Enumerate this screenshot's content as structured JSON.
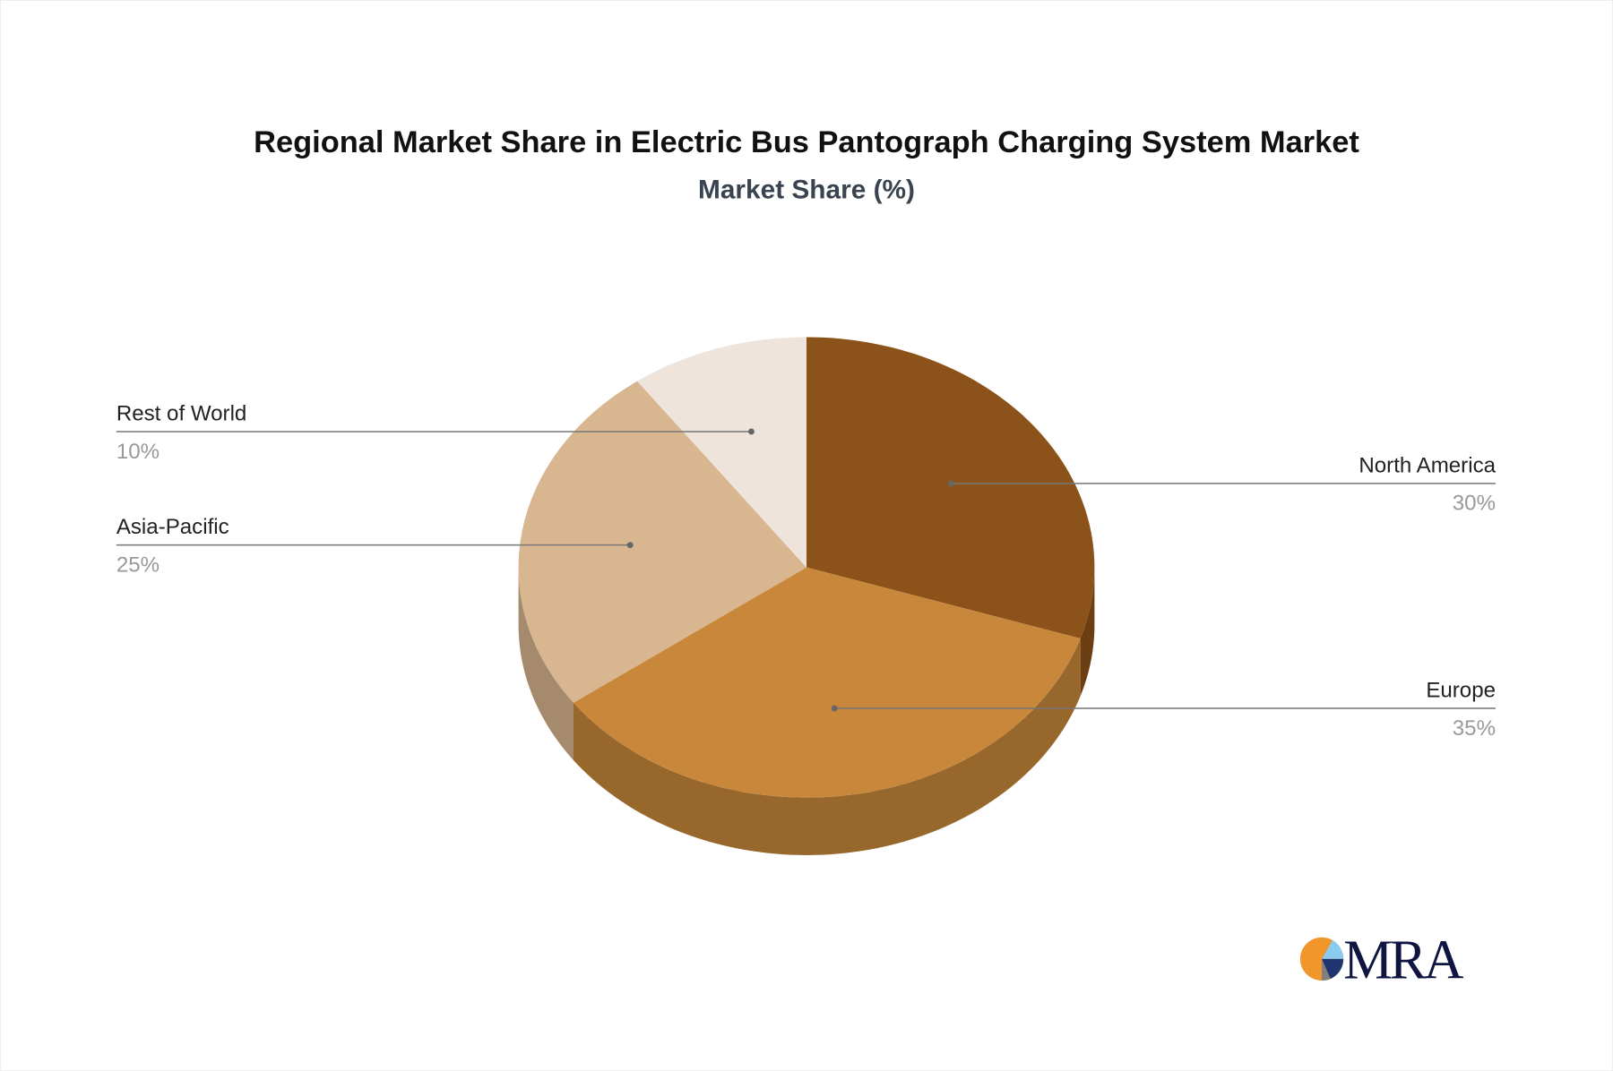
{
  "chart_data": {
    "type": "pie",
    "style": "3d",
    "title": "Regional Market Share in Electric Bus Pantograph Charging System Market",
    "subtitle": "Market Share (%)",
    "start_angle": "12 o'clock, clockwise",
    "slices": [
      {
        "label": "North America",
        "value": 30,
        "value_label": "30%",
        "color": "#8B5319",
        "side_color": "#6B3F12",
        "label_side": "right"
      },
      {
        "label": "Europe",
        "value": 35,
        "value_label": "35%",
        "color": "#C9873B",
        "side_color": "#98672C",
        "label_side": "right"
      },
      {
        "label": "Asia-Pacific",
        "value": 25,
        "value_label": "25%",
        "color": "#D8B690",
        "side_color": "#A58A6D",
        "label_side": "left"
      },
      {
        "label": "Rest of World",
        "value": 10,
        "value_label": "10%",
        "color": "#EEE4DB",
        "side_color": "#BDB2A8",
        "label_side": "left"
      }
    ]
  },
  "logo": {
    "text": "MRA",
    "colors": {
      "orange": "#F0962A",
      "light_blue": "#8CCBF0",
      "navy": "#1E3570",
      "gray": "#808080",
      "text": "#0E1540"
    }
  }
}
